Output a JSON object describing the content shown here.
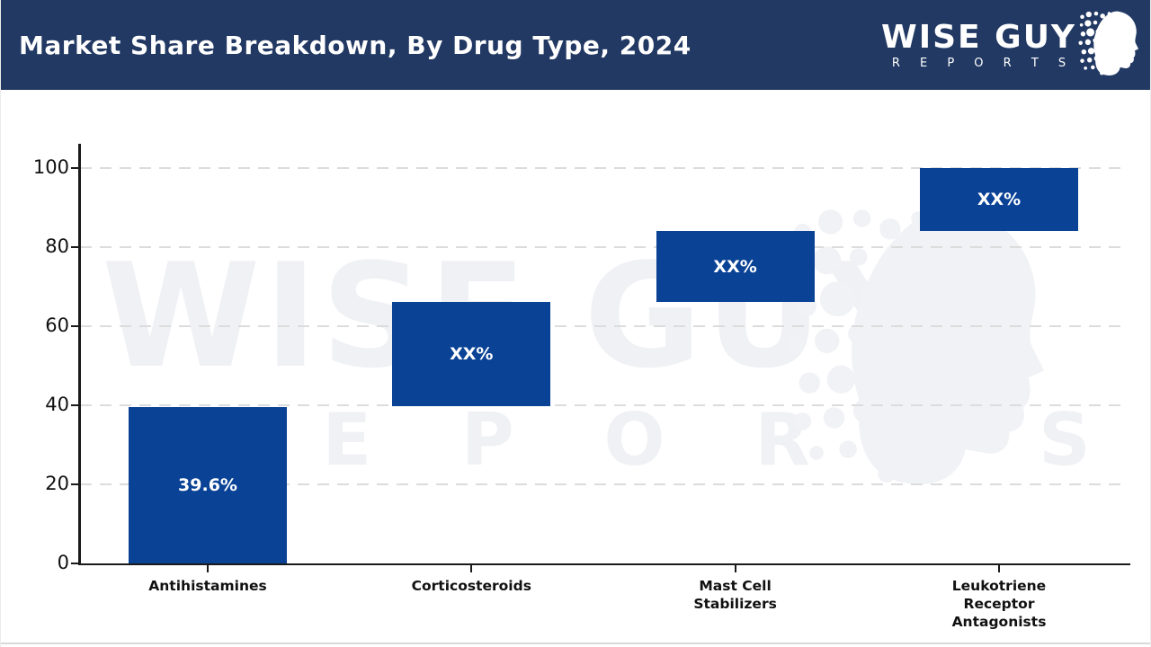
{
  "header": {
    "title": "Market Share Breakdown, By Drug Type, 2024",
    "logo": {
      "brand_line1": "WISE GUY",
      "brand_line2": "R E P O R T S",
      "face_icon": "face-profile-dots-icon"
    }
  },
  "watermark": {
    "line1": "WISE GUY",
    "line2": "R E P O R T S"
  },
  "chart_data": {
    "type": "bar",
    "subtype": "waterfall",
    "title": "Market Share Breakdown, By Drug Type, 2024",
    "unit": "percent market share",
    "categories": [
      "Antihistamines",
      "Corticosteroids",
      "Mast Cell Stabilizers",
      "Leukotriene Receptor Antagonists"
    ],
    "category_label_lines": [
      [
        "Antihistamines"
      ],
      [
        "Corticosteroids"
      ],
      [
        "Mast Cell",
        "Stabilizers"
      ],
      [
        "Leukotriene",
        "Receptor",
        "Antagonists"
      ]
    ],
    "segments": [
      {
        "category": "Antihistamines",
        "start": 0,
        "end": 39.6,
        "label": "39.6%"
      },
      {
        "category": "Corticosteroids",
        "start": 39.6,
        "end": 66,
        "label": "XX%"
      },
      {
        "category": "Mast Cell Stabilizers",
        "start": 66,
        "end": 84,
        "label": "XX%"
      },
      {
        "category": "Leukotriene Receptor Antagonists",
        "start": 84,
        "end": 100,
        "label": "XX%"
      }
    ],
    "xlabel": "",
    "ylabel": "",
    "ylim": [
      0,
      100
    ],
    "yticks": [
      0,
      20,
      40,
      60,
      80,
      100
    ],
    "grid": {
      "horizontal": true,
      "style": "dashed",
      "color": "#dcdcdc"
    },
    "legend": "none",
    "colors": {
      "bar": "#0A4296",
      "bar_label": "#ffffff",
      "axis": "#1a1a1a",
      "tick_label": "#111111",
      "header_bg": "#223963",
      "header_text": "#ffffff",
      "watermark": "#f0f1f4"
    }
  }
}
